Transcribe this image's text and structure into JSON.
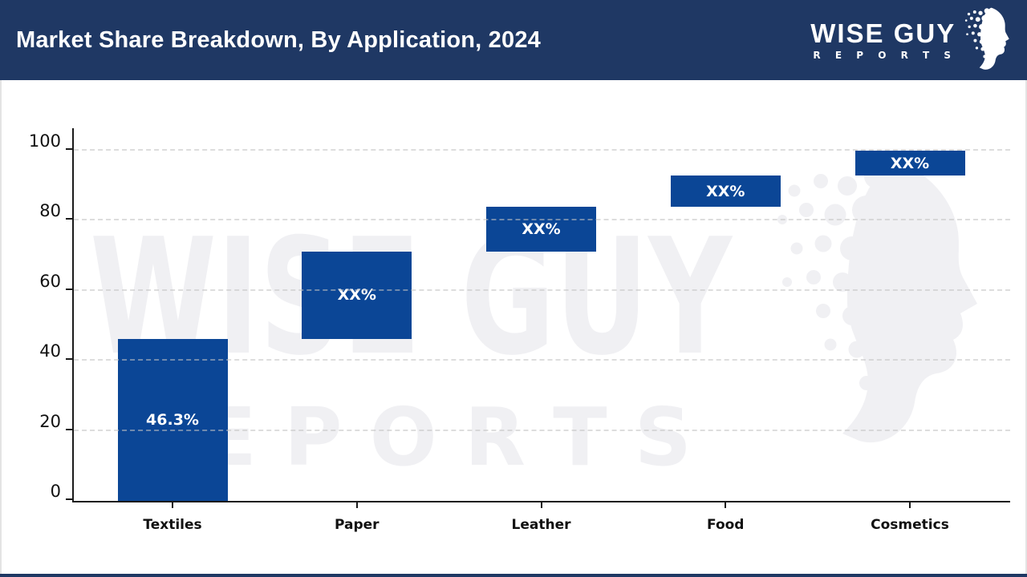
{
  "header": {
    "title": "Market Share Breakdown, By Application, 2024",
    "logo": {
      "wordmark": "WISE GUY",
      "subtext": "R E P O R T S"
    }
  },
  "watermark": {
    "wordmark": "WISE GUY",
    "subtext": "R E P O R T S"
  },
  "colors": {
    "header_bg": "#1f3864",
    "footer_bar": "#1f3864",
    "bar": "#0b4696",
    "bar_label": "#ffffff",
    "axis": "#1a1a1a",
    "grid": "#c3c3c3",
    "watermark": "#f0f0f3"
  },
  "chart_data": {
    "type": "bar",
    "variant": "waterfall",
    "title": "Market Share Breakdown, By Application, 2024",
    "categories": [
      "Textiles",
      "Paper",
      "Leather",
      "Food",
      "Cosmetics"
    ],
    "segments": [
      {
        "category": "Textiles",
        "start": 0,
        "end": 46.3,
        "label": "46.3%"
      },
      {
        "category": "Paper",
        "start": 46.3,
        "end": 71.1,
        "label": "XX%"
      },
      {
        "category": "Leather",
        "start": 71.1,
        "end": 83.9,
        "label": "XX%"
      },
      {
        "category": "Food",
        "start": 83.9,
        "end": 92.9,
        "label": "XX%"
      },
      {
        "category": "Cosmetics",
        "start": 92.9,
        "end": 100,
        "label": "XX%"
      }
    ],
    "xlabel": "",
    "ylabel": "",
    "ylim": [
      0,
      100
    ],
    "yticks": [
      0,
      20,
      40,
      60,
      80,
      100
    ],
    "grid": "horizontal-dashed-over-bars",
    "legend": "none"
  }
}
